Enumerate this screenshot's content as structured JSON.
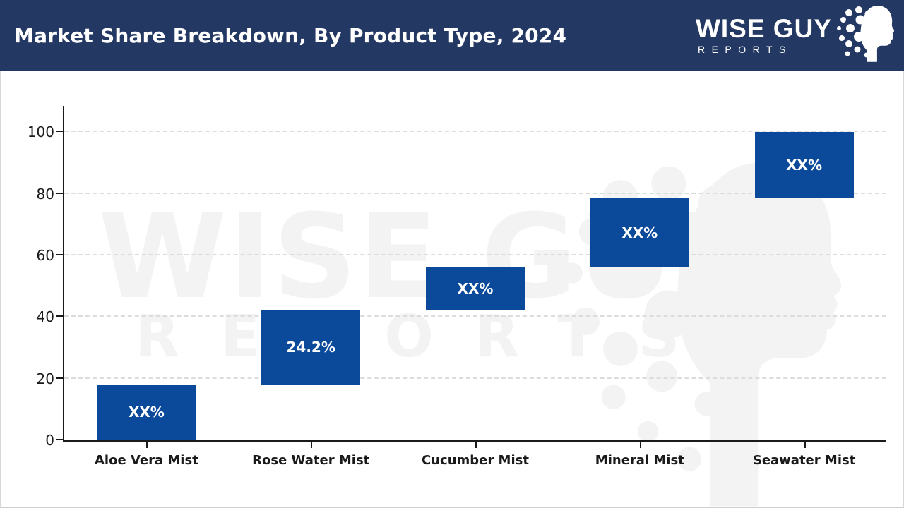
{
  "header": {
    "title": "Market Share Breakdown, By Product Type, 2024",
    "bg_color": "#233862",
    "logo": {
      "line1": "WISE GUY",
      "line2": "REPORTS"
    }
  },
  "watermark": {
    "line1": "WISE GUY",
    "line2": "REPORTS"
  },
  "chart_data": {
    "type": "bar",
    "subtype": "waterfall",
    "title": "Market Share Breakdown, By Product Type, 2024",
    "categories": [
      "Aloe Vera Mist",
      "Rose Water Mist",
      "Cucumber Mist",
      "Mineral Mist",
      "Seawater Mist"
    ],
    "segments": [
      {
        "category": "Aloe Vera Mist",
        "start": 0,
        "end": 18.1,
        "label": "XX%"
      },
      {
        "category": "Rose Water Mist",
        "start": 18.1,
        "end": 42.3,
        "label": "24.2%"
      },
      {
        "category": "Cucumber Mist",
        "start": 42.3,
        "end": 56.0,
        "label": "XX%"
      },
      {
        "category": "Mineral Mist",
        "start": 56.0,
        "end": 78.7,
        "label": "XX%"
      },
      {
        "category": "Seawater Mist",
        "start": 78.7,
        "end": 100.0,
        "label": "XX%"
      }
    ],
    "known_values": {
      "Rose Water Mist": 24.2
    },
    "xlabel": "",
    "ylabel": "",
    "y_ticks": [
      0,
      20,
      40,
      60,
      80,
      100
    ],
    "ylim": [
      0,
      108.5
    ],
    "grid": "horizontal-dashed",
    "legend": "none",
    "bar_color": "#0b4a9b",
    "bar_label_color": "#ffffff",
    "axis_color": "#1a1a1a",
    "gridline_color": "#dcdcdc"
  }
}
